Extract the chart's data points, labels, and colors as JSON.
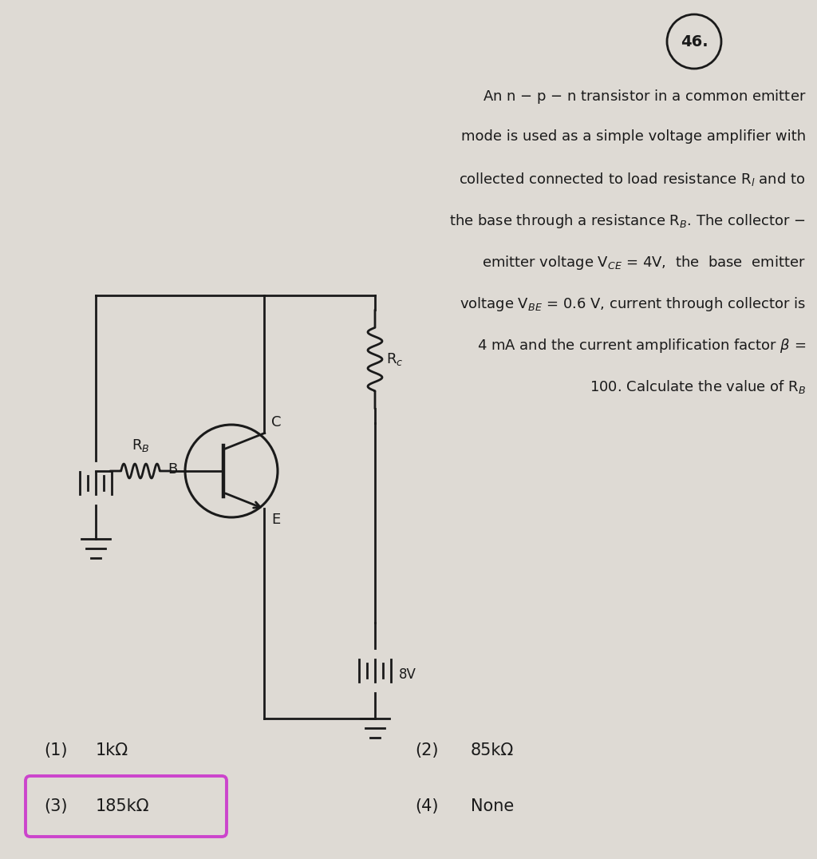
{
  "bg_color": "#dedad4",
  "question_number": "46.",
  "opt1_num": "(1)",
  "opt1_val": "1kΩ",
  "opt2_num": "(2)",
  "opt2_val": "85kΩ",
  "opt3_num": "(3)",
  "opt3_val": "185kΩ",
  "opt4_num": "(4)",
  "opt4_val": "None",
  "answer_color": "#cc44cc",
  "text_color": "#1a1a1a",
  "circuit_color": "#1a1a1a",
  "label_Rc": "R_c",
  "label_Rb": "R_B",
  "label_B": "B",
  "label_C": "C",
  "label_E": "E",
  "label_8V": "8V"
}
